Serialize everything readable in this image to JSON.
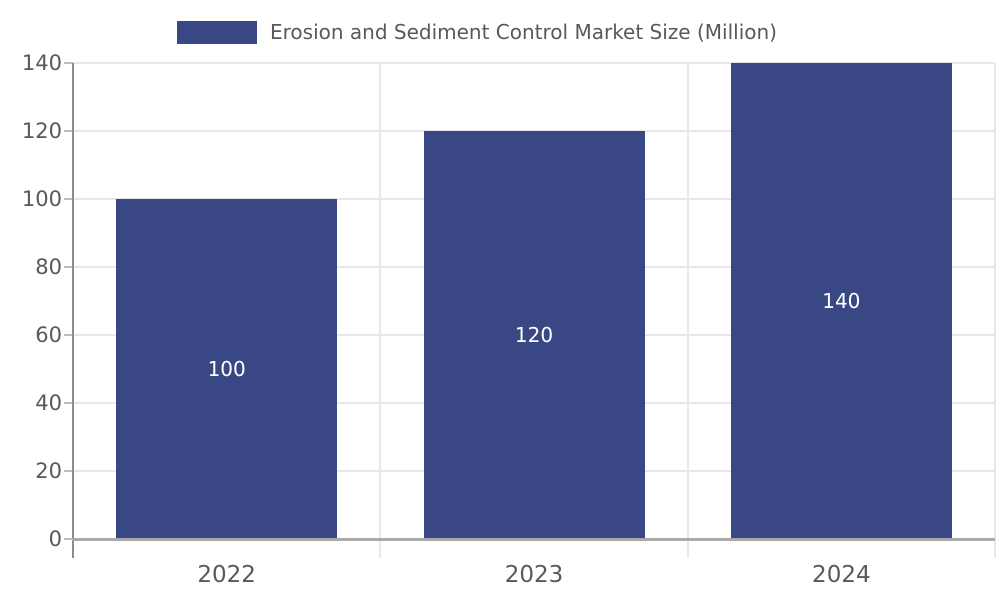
{
  "legend": {
    "label": "Erosion and Sediment Control Market Size (Million)"
  },
  "colors": {
    "bar": "#3A4785",
    "grid": "#e7e7e7",
    "x_axis_line": "#aaaaaa",
    "y_axis_line": "#8c8c8c",
    "tick_mark": "#bdbdbd",
    "text": "#595959",
    "bar_label_text": "#ffffff"
  },
  "chart_data": {
    "type": "bar",
    "title": "",
    "series_name": "Erosion and Sediment Control Market Size (Million)",
    "categories": [
      "2022",
      "2023",
      "2024"
    ],
    "values": [
      100,
      120,
      140
    ],
    "xlabel": "",
    "ylabel": "",
    "ylim": [
      0,
      140
    ],
    "ytick_step": 20,
    "ytick_labels": [
      "0",
      "20",
      "40",
      "60",
      "80",
      "100",
      "120",
      "140"
    ],
    "grid": "horizontal",
    "legend_position": "top"
  }
}
